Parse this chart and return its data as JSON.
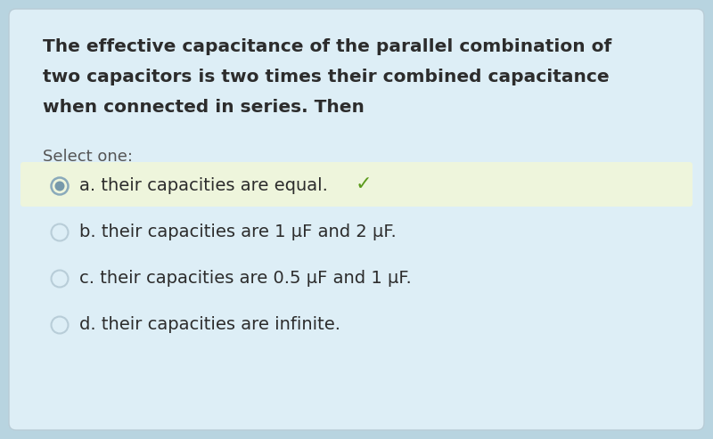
{
  "background_color": "#ddeef6",
  "outer_bg": "#b8d4e0",
  "question_text_lines": [
    "The effective capacitance of the parallel combination of",
    "two capacitors is two times their combined capacitance",
    "when connected in series. Then"
  ],
  "select_label": "Select one:",
  "options": [
    {
      "label": "a. their capacities are equal.",
      "correct": true
    },
    {
      "label": "b. their capacities are 1 μF and 2 μF.",
      "correct": false
    },
    {
      "label": "c. their capacities are 0.5 μF and 1 μF.",
      "correct": false
    },
    {
      "label": "d. their capacities are infinite.",
      "correct": false
    }
  ],
  "question_font_size": 14.5,
  "question_font_weight": "bold",
  "option_font_size": 14,
  "select_font_size": 13,
  "text_color": "#2c2c2c",
  "select_color": "#555555",
  "correct_bg": "#eef5dc",
  "correct_check_color": "#5a9a1a",
  "radio_selected_outer": "#8aaabb",
  "radio_selected_inner": "#7799aa",
  "radio_unselected_color": "#b8cdd8",
  "card_bg": "#ddeef6",
  "card_border": "#b8ccd6"
}
